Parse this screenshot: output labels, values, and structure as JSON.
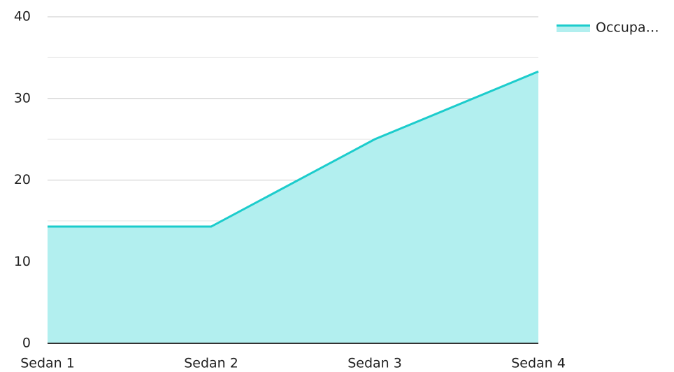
{
  "chart_data": {
    "type": "area",
    "categories": [
      "Sedan 1",
      "Sedan 2",
      "Sedan 3",
      "Sedan 4"
    ],
    "series": [
      {
        "name": "Occupa…",
        "color": "#1ccccc",
        "fill": "#b2efef",
        "values": [
          14.3,
          14.3,
          25.0,
          33.3
        ]
      }
    ],
    "ylim": [
      0,
      40
    ],
    "yticks": [
      0,
      10,
      20,
      30,
      40
    ],
    "minor_yticks": [
      5,
      15,
      25,
      35
    ],
    "grid": true,
    "legend": "top-right"
  }
}
